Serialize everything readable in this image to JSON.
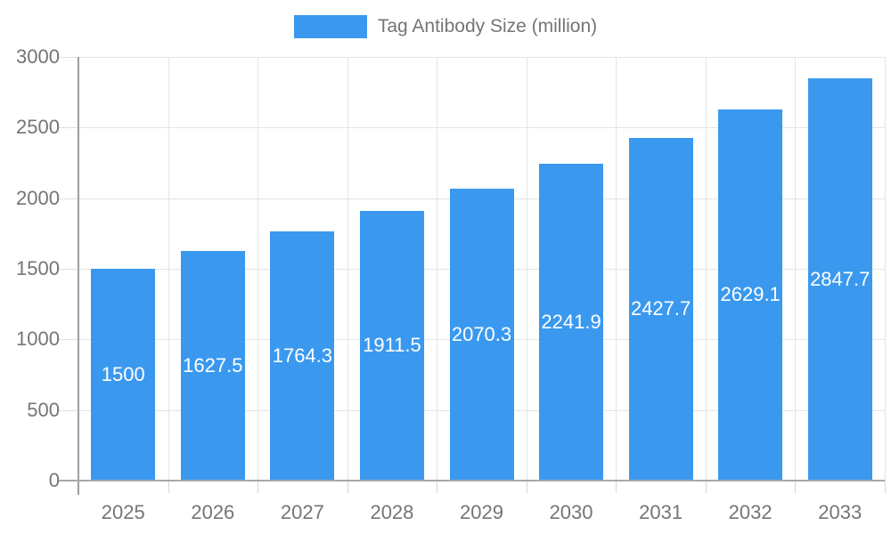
{
  "legend": {
    "label": "Tag Antibody Size (million)",
    "swatch_color": "#3a99ef"
  },
  "chart_data": {
    "type": "bar",
    "title": "Tag Antibody Size (million)",
    "categories": [
      "2025",
      "2026",
      "2027",
      "2028",
      "2029",
      "2030",
      "2031",
      "2032",
      "2033"
    ],
    "series": [
      {
        "name": "Tag Antibody Size (million)",
        "values": [
          1500,
          1627.5,
          1764.3,
          1911.5,
          2070.3,
          2241.9,
          2427.7,
          2629.1,
          2847.7
        ],
        "value_labels": [
          "1500",
          "1627.5",
          "1764.3",
          "1911.5",
          "2070.3",
          "2241.9",
          "2427.7",
          "2629.1",
          "2847.7"
        ],
        "color": "#3a99ef"
      }
    ],
    "xlabel": "",
    "ylabel": "",
    "ylim": [
      0,
      3000
    ],
    "yticks": [
      0,
      500,
      1000,
      1500,
      2000,
      2500,
      3000
    ],
    "grid": true,
    "legend_position": "top",
    "value_label_color": "#ffffff",
    "axis_text_color": "#757575"
  }
}
